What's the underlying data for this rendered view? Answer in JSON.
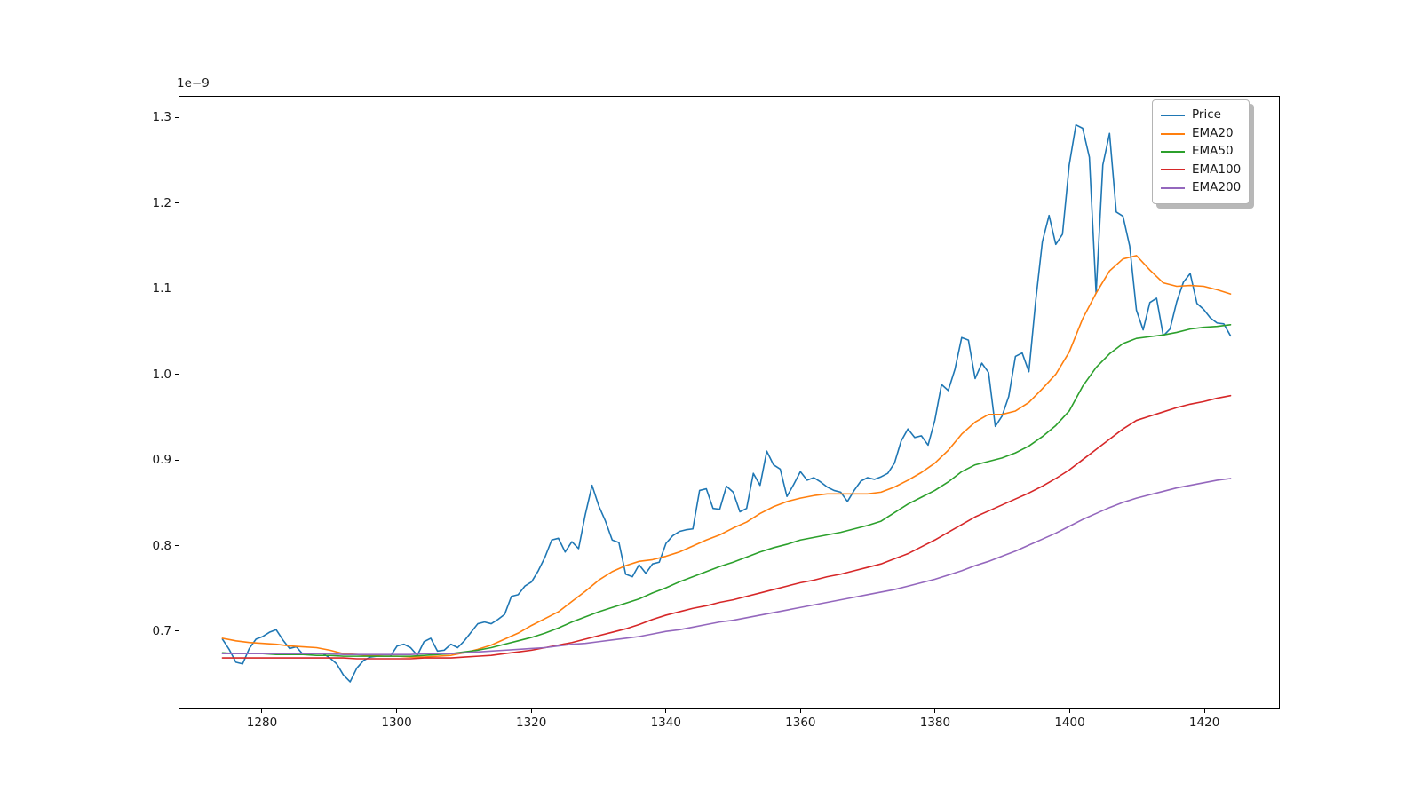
{
  "figure": {
    "background": "#ffffff",
    "offset_text": "1e−9"
  },
  "chart_data": {
    "type": "line",
    "title": "",
    "xlabel": "",
    "ylabel": "",
    "grid": false,
    "unit_multiplier_label": "1e−9",
    "xlim": [
      1267.6,
      1431.2
    ],
    "ylim": [
      0.6088,
      1.3249
    ],
    "xticks": [
      1280,
      1300,
      1320,
      1340,
      1360,
      1380,
      1400,
      1420
    ],
    "xtick_labels": [
      "1280",
      "1300",
      "1320",
      "1340",
      "1360",
      "1380",
      "1400",
      "1420"
    ],
    "yticks": [
      0.7,
      0.8,
      0.9,
      1.0,
      1.1,
      1.2,
      1.3
    ],
    "ytick_labels": [
      "0.7",
      "0.8",
      "0.9",
      "1.0",
      "1.1",
      "1.2",
      "1.3"
    ],
    "legend": {
      "position": "upper right",
      "shadow": true
    },
    "series": [
      {
        "name": "Price",
        "color": "#1f77b4",
        "x": [
          1274,
          1275,
          1276,
          1277,
          1278,
          1279,
          1280,
          1281,
          1282,
          1283,
          1284,
          1285,
          1286,
          1287,
          1288,
          1289,
          1290,
          1291,
          1292,
          1293,
          1294,
          1295,
          1296,
          1297,
          1298,
          1299,
          1300,
          1301,
          1302,
          1303,
          1304,
          1305,
          1306,
          1307,
          1308,
          1309,
          1310,
          1311,
          1312,
          1313,
          1314,
          1315,
          1316,
          1317,
          1318,
          1319,
          1320,
          1321,
          1322,
          1323,
          1324,
          1325,
          1326,
          1327,
          1328,
          1329,
          1330,
          1331,
          1332,
          1333,
          1334,
          1335,
          1336,
          1337,
          1338,
          1339,
          1340,
          1341,
          1342,
          1343,
          1344,
          1345,
          1346,
          1347,
          1348,
          1349,
          1350,
          1351,
          1352,
          1353,
          1354,
          1355,
          1356,
          1357,
          1358,
          1359,
          1360,
          1361,
          1362,
          1363,
          1364,
          1365,
          1366,
          1367,
          1368,
          1369,
          1370,
          1371,
          1372,
          1373,
          1374,
          1375,
          1376,
          1377,
          1378,
          1379,
          1380,
          1381,
          1382,
          1383,
          1384,
          1385,
          1386,
          1387,
          1388,
          1389,
          1390,
          1391,
          1392,
          1393,
          1394,
          1395,
          1396,
          1397,
          1398,
          1399,
          1400,
          1401,
          1402,
          1403,
          1404,
          1405,
          1406,
          1407,
          1408,
          1409,
          1410,
          1411,
          1412,
          1413,
          1414,
          1415,
          1416,
          1417,
          1418,
          1419,
          1420,
          1421,
          1422,
          1423,
          1424
        ],
        "values": [
          0.69,
          0.678,
          0.663,
          0.661,
          0.679,
          0.69,
          0.693,
          0.698,
          0.701,
          0.689,
          0.679,
          0.681,
          0.672,
          0.673,
          0.673,
          0.673,
          0.668,
          0.661,
          0.648,
          0.64,
          0.656,
          0.665,
          0.669,
          0.67,
          0.67,
          0.67,
          0.682,
          0.684,
          0.68,
          0.671,
          0.687,
          0.691,
          0.676,
          0.677,
          0.684,
          0.68,
          0.688,
          0.698,
          0.708,
          0.71,
          0.708,
          0.713,
          0.719,
          0.74,
          0.742,
          0.752,
          0.757,
          0.77,
          0.786,
          0.806,
          0.808,
          0.792,
          0.804,
          0.796,
          0.836,
          0.87,
          0.846,
          0.828,
          0.806,
          0.803,
          0.766,
          0.763,
          0.777,
          0.767,
          0.778,
          0.78,
          0.802,
          0.811,
          0.816,
          0.818,
          0.819,
          0.864,
          0.866,
          0.843,
          0.842,
          0.869,
          0.862,
          0.839,
          0.843,
          0.884,
          0.87,
          0.91,
          0.894,
          0.889,
          0.857,
          0.871,
          0.886,
          0.876,
          0.879,
          0.874,
          0.868,
          0.864,
          0.862,
          0.851,
          0.864,
          0.875,
          0.879,
          0.877,
          0.88,
          0.884,
          0.896,
          0.922,
          0.936,
          0.926,
          0.928,
          0.917,
          0.946,
          0.988,
          0.981,
          1.006,
          1.043,
          1.04,
          0.995,
          1.013,
          1.002,
          0.939,
          0.951,
          0.974,
          1.021,
          1.025,
          1.003,
          1.085,
          1.155,
          1.186,
          1.152,
          1.164,
          1.245,
          1.292,
          1.288,
          1.254,
          1.095,
          1.245,
          1.282,
          1.19,
          1.185,
          1.15,
          1.075,
          1.052,
          1.084,
          1.089,
          1.045,
          1.053,
          1.085,
          1.108,
          1.118,
          1.083,
          1.076,
          1.066,
          1.06,
          1.059,
          1.045
        ]
      },
      {
        "name": "EMA20",
        "color": "#ff7f0e",
        "x": [
          1274,
          1276,
          1278,
          1280,
          1282,
          1284,
          1286,
          1288,
          1290,
          1292,
          1294,
          1296,
          1298,
          1300,
          1302,
          1304,
          1306,
          1308,
          1310,
          1312,
          1314,
          1316,
          1318,
          1320,
          1322,
          1324,
          1326,
          1328,
          1330,
          1332,
          1334,
          1336,
          1338,
          1340,
          1342,
          1344,
          1346,
          1348,
          1350,
          1352,
          1354,
          1356,
          1358,
          1360,
          1362,
          1364,
          1366,
          1368,
          1370,
          1372,
          1374,
          1376,
          1378,
          1380,
          1382,
          1384,
          1386,
          1388,
          1390,
          1392,
          1394,
          1396,
          1398,
          1400,
          1402,
          1404,
          1406,
          1408,
          1410,
          1412,
          1414,
          1416,
          1418,
          1420,
          1422,
          1424
        ],
        "values": [
          0.691,
          0.688,
          0.686,
          0.685,
          0.684,
          0.682,
          0.681,
          0.68,
          0.677,
          0.673,
          0.672,
          0.671,
          0.67,
          0.67,
          0.669,
          0.669,
          0.67,
          0.671,
          0.674,
          0.678,
          0.683,
          0.69,
          0.697,
          0.706,
          0.714,
          0.722,
          0.734,
          0.746,
          0.759,
          0.769,
          0.776,
          0.781,
          0.783,
          0.787,
          0.792,
          0.799,
          0.806,
          0.812,
          0.82,
          0.827,
          0.837,
          0.845,
          0.851,
          0.855,
          0.858,
          0.86,
          0.86,
          0.86,
          0.86,
          0.862,
          0.868,
          0.876,
          0.885,
          0.896,
          0.911,
          0.93,
          0.944,
          0.953,
          0.953,
          0.957,
          0.967,
          0.983,
          1.0,
          1.026,
          1.065,
          1.095,
          1.121,
          1.135,
          1.139,
          1.122,
          1.107,
          1.103,
          1.104,
          1.103,
          1.099,
          1.094
        ]
      },
      {
        "name": "EMA50",
        "color": "#2ca02c",
        "x": [
          1274,
          1276,
          1278,
          1280,
          1282,
          1284,
          1286,
          1288,
          1290,
          1292,
          1294,
          1296,
          1298,
          1300,
          1302,
          1304,
          1306,
          1308,
          1310,
          1312,
          1314,
          1316,
          1318,
          1320,
          1322,
          1324,
          1326,
          1328,
          1330,
          1332,
          1334,
          1336,
          1338,
          1340,
          1342,
          1344,
          1346,
          1348,
          1350,
          1352,
          1354,
          1356,
          1358,
          1360,
          1362,
          1364,
          1366,
          1368,
          1370,
          1372,
          1374,
          1376,
          1378,
          1380,
          1382,
          1384,
          1386,
          1388,
          1390,
          1392,
          1394,
          1396,
          1398,
          1400,
          1402,
          1404,
          1406,
          1408,
          1410,
          1412,
          1414,
          1416,
          1418,
          1420,
          1422,
          1424
        ],
        "values": [
          0.674,
          0.673,
          0.673,
          0.673,
          0.672,
          0.672,
          0.672,
          0.671,
          0.671,
          0.67,
          0.67,
          0.67,
          0.67,
          0.67,
          0.67,
          0.671,
          0.672,
          0.673,
          0.675,
          0.677,
          0.68,
          0.684,
          0.688,
          0.692,
          0.697,
          0.703,
          0.71,
          0.716,
          0.722,
          0.727,
          0.732,
          0.737,
          0.744,
          0.75,
          0.757,
          0.763,
          0.769,
          0.775,
          0.78,
          0.786,
          0.792,
          0.797,
          0.801,
          0.806,
          0.809,
          0.812,
          0.815,
          0.819,
          0.823,
          0.828,
          0.838,
          0.848,
          0.856,
          0.864,
          0.874,
          0.886,
          0.894,
          0.898,
          0.902,
          0.908,
          0.916,
          0.927,
          0.94,
          0.957,
          0.986,
          1.008,
          1.024,
          1.036,
          1.042,
          1.044,
          1.046,
          1.049,
          1.053,
          1.055,
          1.056,
          1.058
        ]
      },
      {
        "name": "EMA100",
        "color": "#d62728",
        "x": [
          1274,
          1276,
          1278,
          1280,
          1282,
          1284,
          1286,
          1288,
          1290,
          1292,
          1294,
          1296,
          1298,
          1300,
          1302,
          1304,
          1306,
          1308,
          1310,
          1312,
          1314,
          1316,
          1318,
          1320,
          1322,
          1324,
          1326,
          1328,
          1330,
          1332,
          1334,
          1336,
          1338,
          1340,
          1342,
          1344,
          1346,
          1348,
          1350,
          1352,
          1354,
          1356,
          1358,
          1360,
          1362,
          1364,
          1366,
          1368,
          1370,
          1372,
          1374,
          1376,
          1378,
          1380,
          1382,
          1384,
          1386,
          1388,
          1390,
          1392,
          1394,
          1396,
          1398,
          1400,
          1402,
          1404,
          1406,
          1408,
          1410,
          1412,
          1414,
          1416,
          1418,
          1420,
          1422,
          1424
        ],
        "values": [
          0.668,
          0.668,
          0.668,
          0.668,
          0.668,
          0.668,
          0.668,
          0.668,
          0.668,
          0.668,
          0.667,
          0.667,
          0.667,
          0.667,
          0.667,
          0.668,
          0.668,
          0.668,
          0.669,
          0.67,
          0.671,
          0.673,
          0.675,
          0.677,
          0.68,
          0.683,
          0.686,
          0.69,
          0.694,
          0.698,
          0.702,
          0.707,
          0.713,
          0.718,
          0.722,
          0.726,
          0.729,
          0.733,
          0.736,
          0.74,
          0.744,
          0.748,
          0.752,
          0.756,
          0.759,
          0.763,
          0.766,
          0.77,
          0.774,
          0.778,
          0.784,
          0.79,
          0.798,
          0.806,
          0.815,
          0.824,
          0.833,
          0.84,
          0.847,
          0.854,
          0.861,
          0.869,
          0.878,
          0.888,
          0.9,
          0.912,
          0.924,
          0.936,
          0.946,
          0.951,
          0.956,
          0.961,
          0.965,
          0.968,
          0.972,
          0.975
        ]
      },
      {
        "name": "EMA200",
        "color": "#9467bd",
        "x": [
          1274,
          1276,
          1278,
          1280,
          1282,
          1284,
          1286,
          1288,
          1290,
          1292,
          1294,
          1296,
          1298,
          1300,
          1302,
          1304,
          1306,
          1308,
          1310,
          1312,
          1314,
          1316,
          1318,
          1320,
          1322,
          1324,
          1326,
          1328,
          1330,
          1332,
          1334,
          1336,
          1338,
          1340,
          1342,
          1344,
          1346,
          1348,
          1350,
          1352,
          1354,
          1356,
          1358,
          1360,
          1362,
          1364,
          1366,
          1368,
          1370,
          1372,
          1374,
          1376,
          1378,
          1380,
          1382,
          1384,
          1386,
          1388,
          1390,
          1392,
          1394,
          1396,
          1398,
          1400,
          1402,
          1404,
          1406,
          1408,
          1410,
          1412,
          1414,
          1416,
          1418,
          1420,
          1422,
          1424
        ],
        "values": [
          0.673,
          0.673,
          0.673,
          0.673,
          0.673,
          0.673,
          0.673,
          0.673,
          0.673,
          0.672,
          0.672,
          0.672,
          0.672,
          0.672,
          0.672,
          0.673,
          0.673,
          0.673,
          0.674,
          0.675,
          0.676,
          0.677,
          0.678,
          0.679,
          0.68,
          0.682,
          0.684,
          0.685,
          0.687,
          0.689,
          0.691,
          0.693,
          0.696,
          0.699,
          0.701,
          0.704,
          0.707,
          0.71,
          0.712,
          0.715,
          0.718,
          0.721,
          0.724,
          0.727,
          0.73,
          0.733,
          0.736,
          0.739,
          0.742,
          0.745,
          0.748,
          0.752,
          0.756,
          0.76,
          0.765,
          0.77,
          0.776,
          0.781,
          0.787,
          0.793,
          0.8,
          0.807,
          0.814,
          0.822,
          0.83,
          0.837,
          0.844,
          0.85,
          0.855,
          0.859,
          0.863,
          0.867,
          0.87,
          0.873,
          0.876,
          0.878
        ]
      }
    ]
  }
}
